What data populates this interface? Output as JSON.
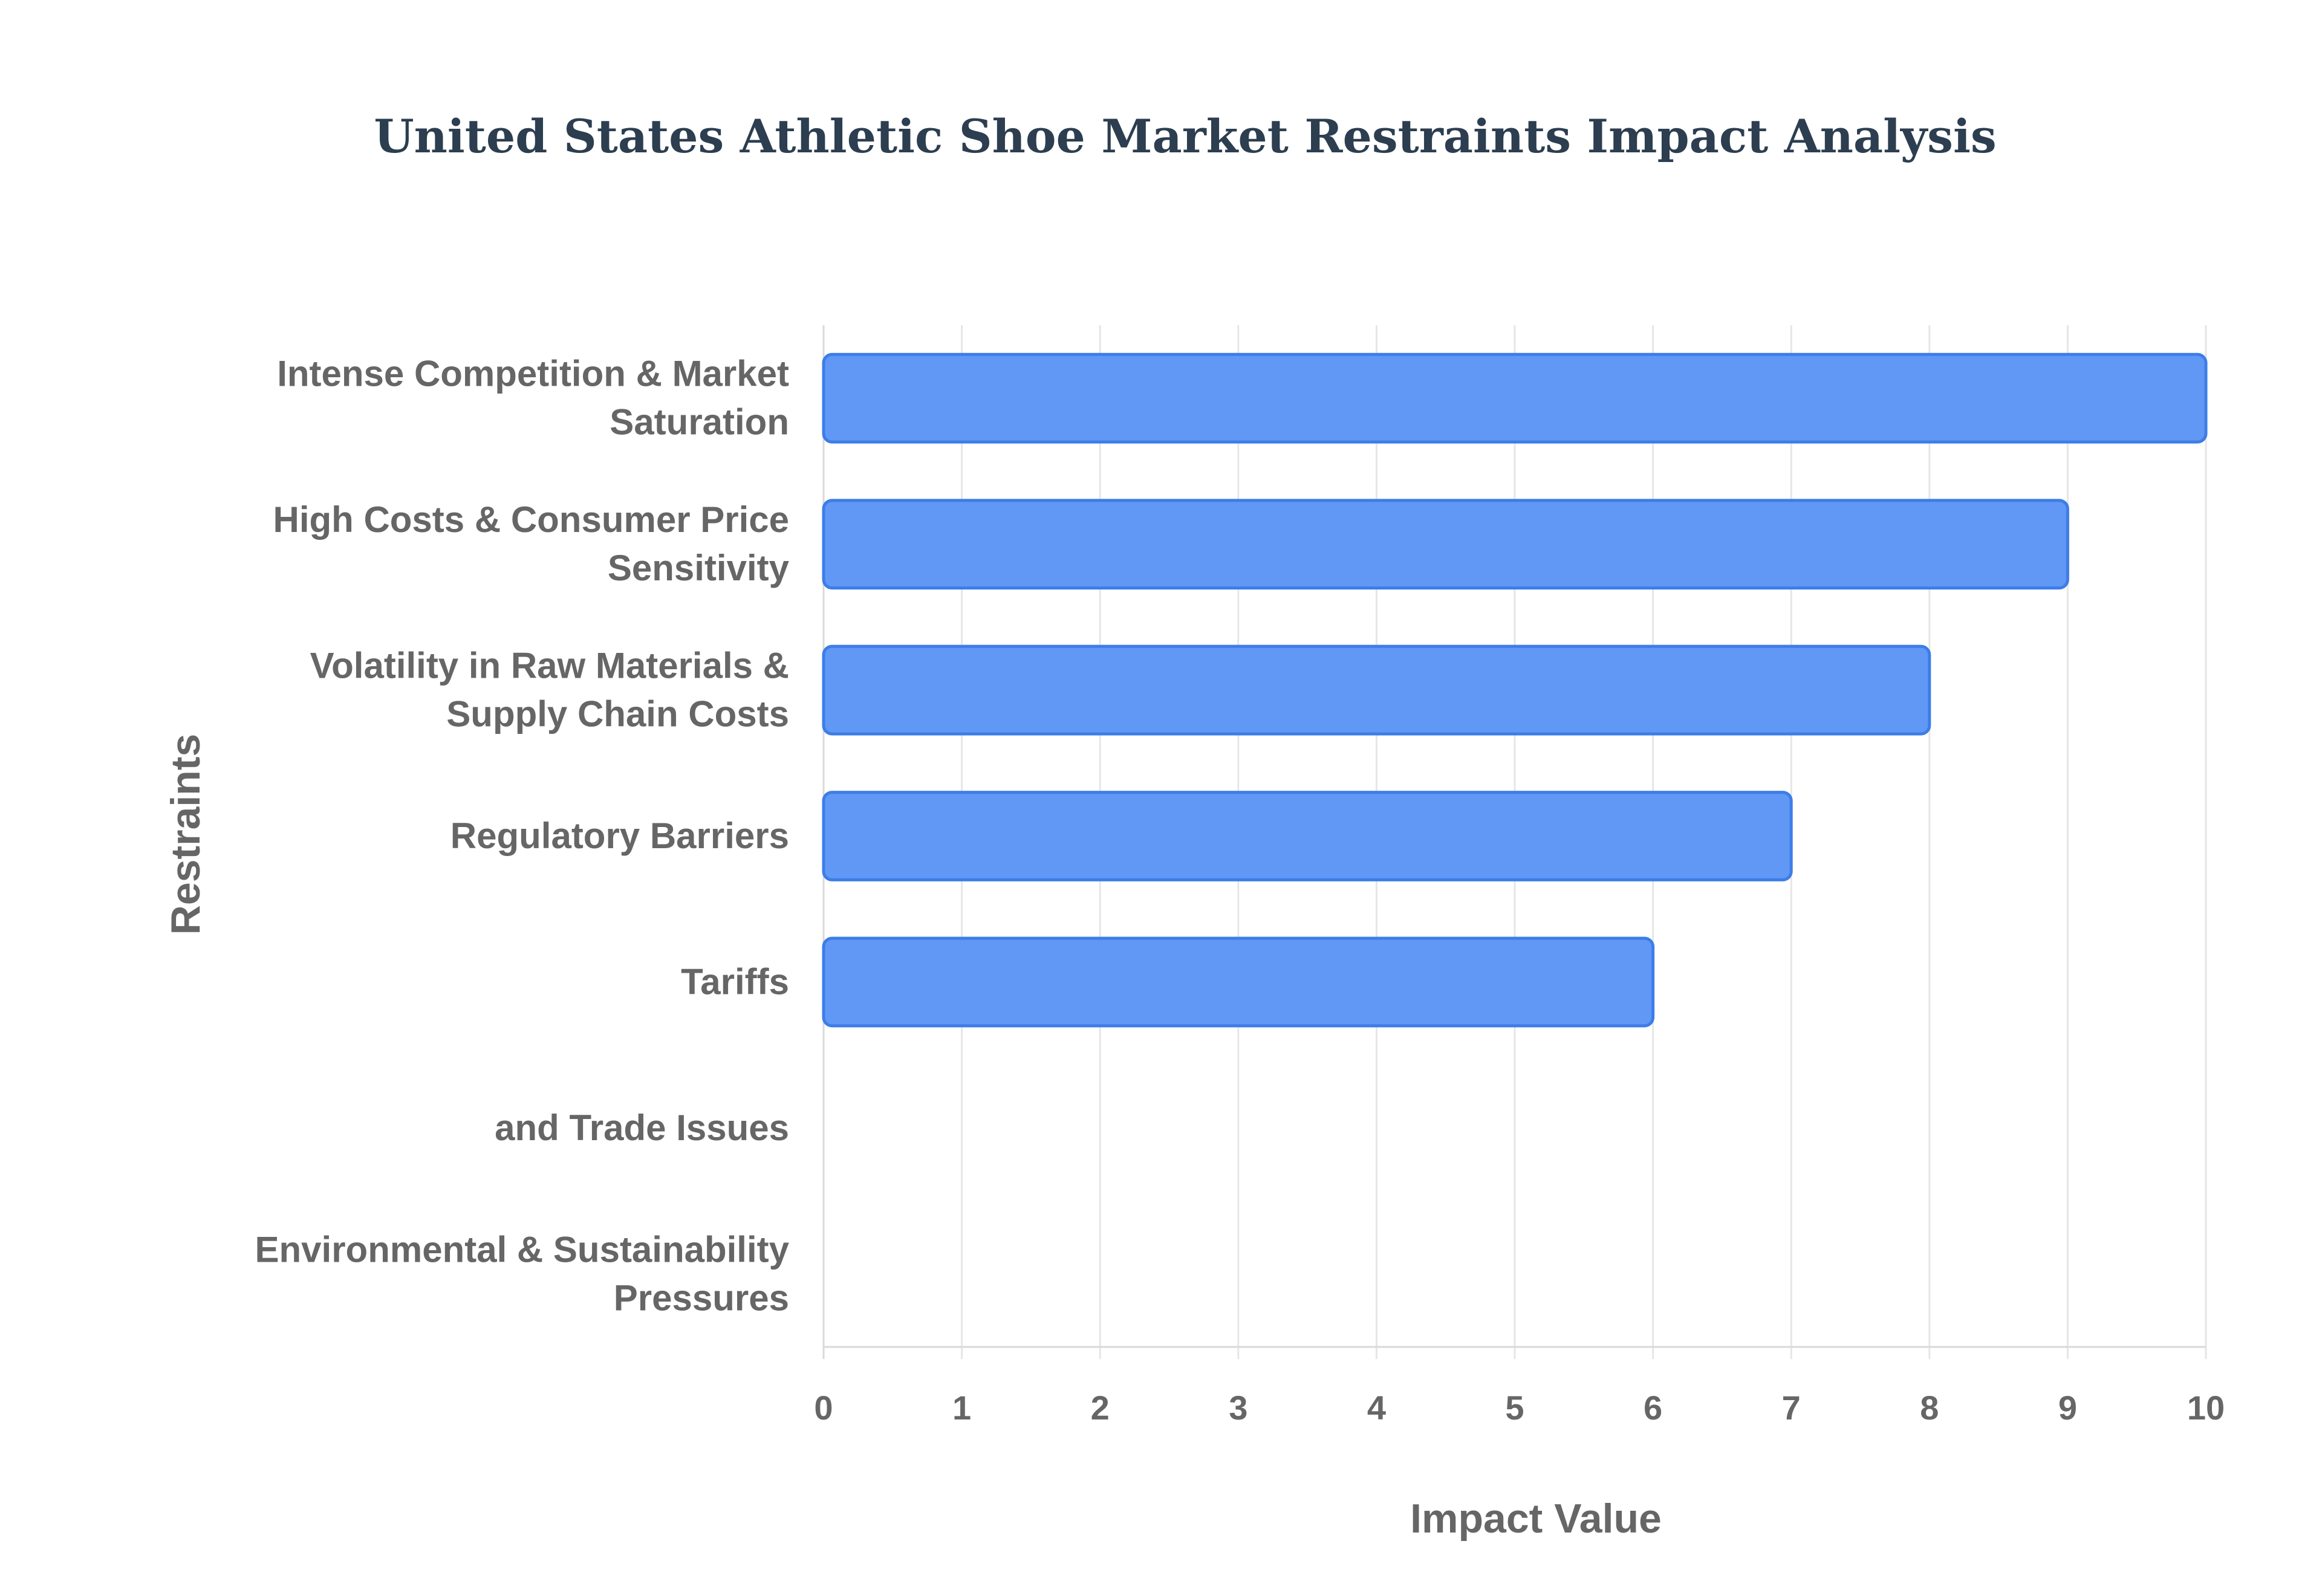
{
  "chart_data": {
    "type": "bar",
    "orientation": "horizontal",
    "title": "United States Athletic Shoe Market Restraints Impact Analysis",
    "xlabel": "Impact Value",
    "ylabel": "Restraints",
    "xlim": [
      0,
      10
    ],
    "x_ticks": [
      "0",
      "1",
      "2",
      "3",
      "4",
      "5",
      "6",
      "7",
      "8",
      "9",
      "10"
    ],
    "grid": true,
    "bar_color": "#6198f5",
    "bar_border_color": "#3d7de8",
    "categories": [
      [
        "Intense Competition & Market",
        "Saturation"
      ],
      [
        "High Costs & Consumer Price",
        "Sensitivity"
      ],
      [
        "Volatility in Raw Materials &",
        "Supply Chain Costs"
      ],
      [
        "Regulatory Barriers"
      ],
      [
        "Tariffs"
      ],
      [
        "and Trade Issues"
      ],
      [
        "Environmental & Sustainability",
        "Pressures"
      ]
    ],
    "values": [
      10,
      9,
      8,
      7,
      6,
      null,
      null
    ]
  }
}
